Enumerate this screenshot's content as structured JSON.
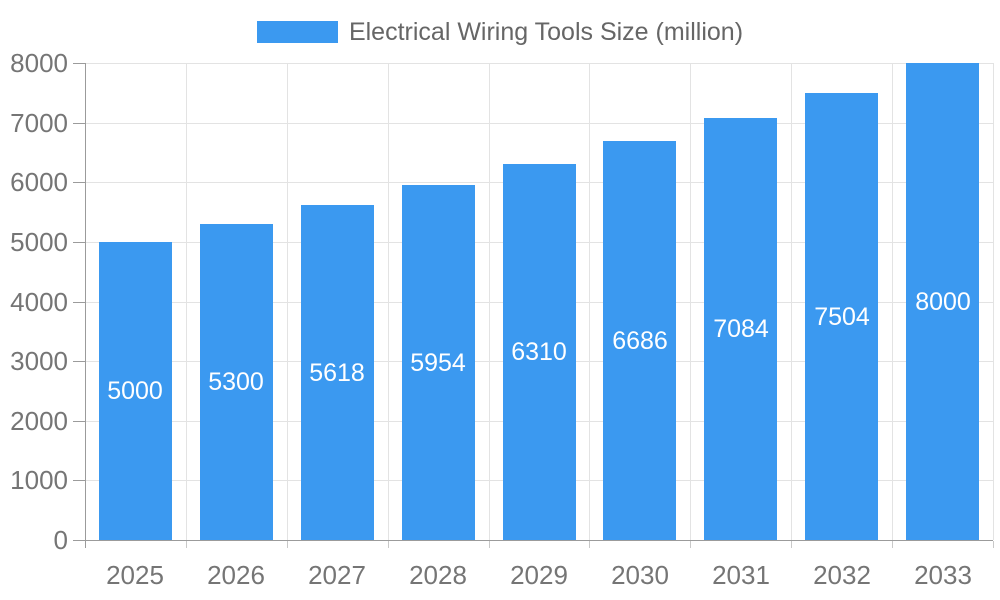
{
  "chart_data": {
    "type": "bar",
    "title": "Electrical Wiring Tools Size (million)",
    "legend": {
      "label": "Electrical Wiring Tools Size (million)",
      "position": "top"
    },
    "categories": [
      "2025",
      "2026",
      "2027",
      "2028",
      "2029",
      "2030",
      "2031",
      "2032",
      "2033"
    ],
    "series": [
      {
        "name": "Electrical Wiring Tools Size (million)",
        "values": [
          5000,
          5300,
          5618,
          5954,
          6310,
          6686,
          7084,
          7504,
          8000
        ]
      }
    ],
    "xlabel": "",
    "ylabel": "",
    "ylim": [
      0,
      8000
    ],
    "ytick_step": 1000,
    "yticks": [
      0,
      1000,
      2000,
      3000,
      4000,
      5000,
      6000,
      7000,
      8000
    ],
    "grid": true,
    "value_labels": "inside-center",
    "colors": {
      "bar": "#3B99F0",
      "grid": "#e3e3e3",
      "axis": "#9b9b9b",
      "boundary_tick": "#c9c9c9",
      "axis_text": "#757575",
      "legend_text": "#666666",
      "value_text": "#ffffff",
      "background": "#ffffff"
    }
  }
}
